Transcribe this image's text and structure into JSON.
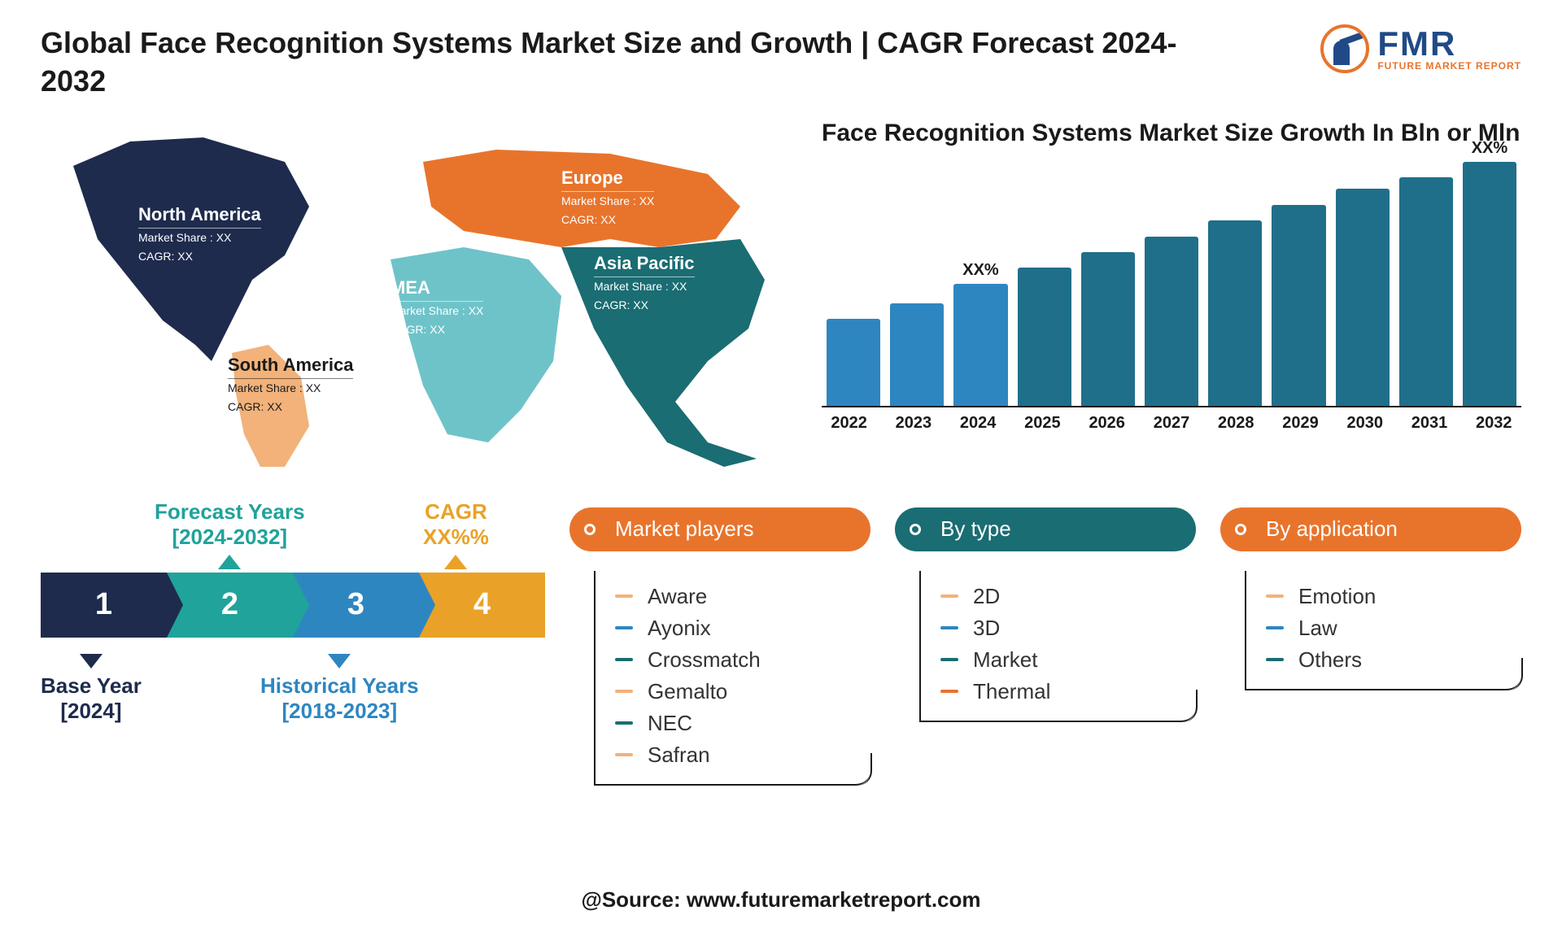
{
  "title": "Global Face Recognition Systems Market Size and Growth | CAGR Forecast 2024-2032",
  "logo": {
    "fmr": "FMR",
    "sub": "FUTURE MARKET REPORT"
  },
  "map": {
    "regions": [
      {
        "key": "na",
        "name": "North America",
        "share": "Market Share : XX",
        "cagr": "CAGR: XX",
        "color": "#1e2b4d"
      },
      {
        "key": "sa",
        "name": "South America",
        "share": "Market Share : XX",
        "cagr": "CAGR: XX",
        "color": "#f2b27a"
      },
      {
        "key": "eu",
        "name": "Europe",
        "share": "Market Share : XX",
        "cagr": "CAGR: XX",
        "color": "#e8742c"
      },
      {
        "key": "mea",
        "name": "MEA",
        "share": "Market Share : XX",
        "cagr": "CAGR: XX",
        "color": "#6ec3c9"
      },
      {
        "key": "apac",
        "name": "Asia Pacific",
        "share": "Market Share : XX",
        "cagr": "CAGR: XX",
        "color": "#1a6d72"
      }
    ]
  },
  "chart": {
    "title": "Face Recognition Systems Market Size Growth In Bln or Mln",
    "years": [
      "2022",
      "2023",
      "2024",
      "2025",
      "2026",
      "2027",
      "2028",
      "2029",
      "2030",
      "2031",
      "2032"
    ],
    "values": [
      110,
      130,
      155,
      175,
      195,
      215,
      235,
      255,
      275,
      290,
      310
    ],
    "colors": [
      "#2e86c1",
      "#2e86c1",
      "#2e86c1",
      "#1f6f8b",
      "#1f6f8b",
      "#1f6f8b",
      "#1f6f8b",
      "#1f6f8b",
      "#1f6f8b",
      "#1f6f8b",
      "#1f6f8b"
    ],
    "top_labels": {
      "2": "XX%",
      "10": "XX%"
    },
    "max": 310
  },
  "timeline": {
    "annot": {
      "forecast": {
        "label": "Forecast Years",
        "range": "[2024-2032]",
        "color": "#1fa39a"
      },
      "cagr": {
        "label": "CAGR",
        "range": "XX%%",
        "color": "#e9a227"
      },
      "base": {
        "label": "Base Year",
        "range": "[2024]",
        "color": "#1e2b4d"
      },
      "hist": {
        "label": "Historical Years",
        "range": "[2018-2023]",
        "color": "#2e86c1"
      }
    },
    "segments": [
      {
        "n": "1",
        "color": "#1e2b4d"
      },
      {
        "n": "2",
        "color": "#1fa39a"
      },
      {
        "n": "3",
        "color": "#2e86c1"
      },
      {
        "n": "4",
        "color": "#e9a227"
      }
    ]
  },
  "pill_colors": {
    "players": "#e8742c",
    "type": "#1a6d72",
    "app": "#e8742c"
  },
  "pills": {
    "players": {
      "label": "Market players",
      "items": [
        {
          "t": "Aware",
          "c": "#f2b27a"
        },
        {
          "t": "Ayonix",
          "c": "#2e86c1"
        },
        {
          "t": "Crossmatch",
          "c": "#1a6d72"
        },
        {
          "t": "Gemalto",
          "c": "#f2b27a"
        },
        {
          "t": "NEC",
          "c": "#1a6d72"
        },
        {
          "t": "Safran",
          "c": "#f2b27a"
        }
      ]
    },
    "type": {
      "label": "By type",
      "items": [
        {
          "t": "2D",
          "c": "#f2b27a"
        },
        {
          "t": "3D",
          "c": "#2e86c1"
        },
        {
          "t": "Market",
          "c": "#1a6d72"
        },
        {
          "t": "Thermal",
          "c": "#e8742c"
        }
      ]
    },
    "app": {
      "label": "By application",
      "items": [
        {
          "t": "Emotion",
          "c": "#f2b27a"
        },
        {
          "t": "Law",
          "c": "#2e86c1"
        },
        {
          "t": "Others",
          "c": "#1a6d72"
        }
      ]
    }
  },
  "source": "@Source: www.futuremarketreport.com"
}
